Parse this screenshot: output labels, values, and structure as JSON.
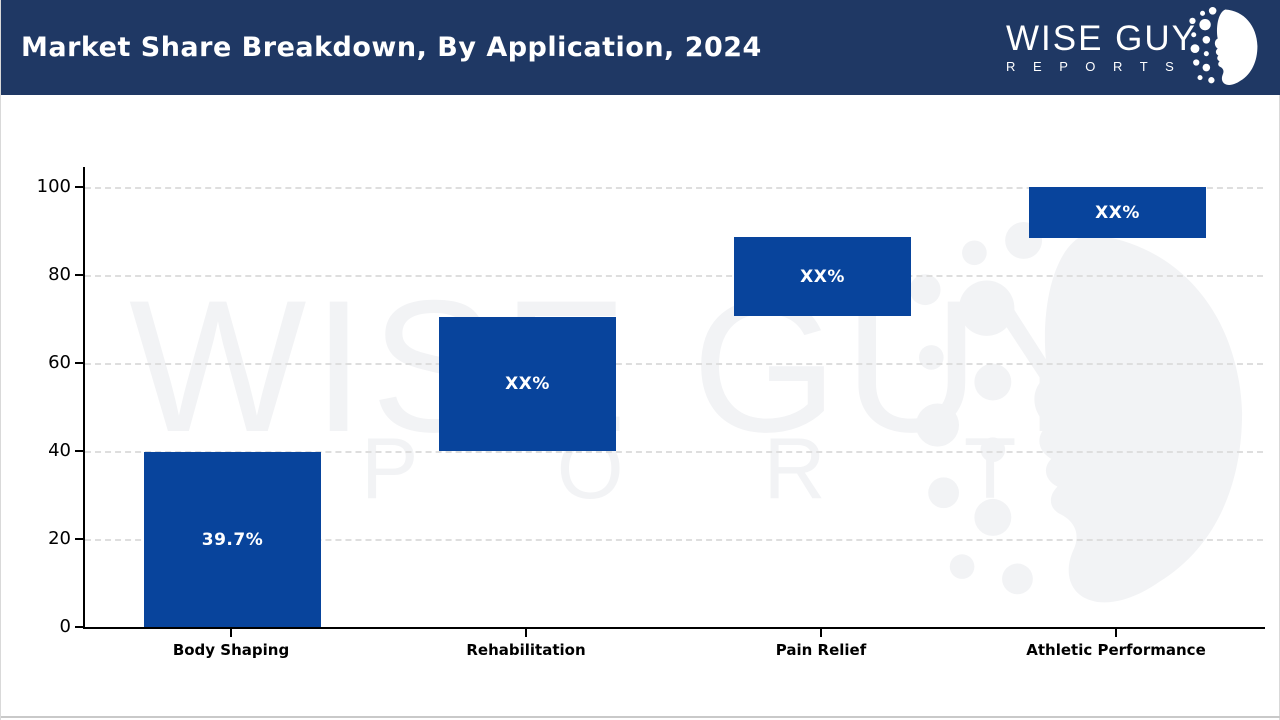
{
  "header": {
    "title": "Market Share Breakdown, By Application, 2024",
    "logo": {
      "line1": "WISE GUY",
      "line2": "R E P O R T S"
    },
    "bg_color": "#1f3864"
  },
  "watermark": {
    "line1": "WISE GUY",
    "line2": "P O R T S"
  },
  "chart_data": {
    "type": "bar",
    "subtype": "waterfall",
    "title": "Market Share Breakdown, By Application, 2024",
    "categories": [
      "Body Shaping",
      "Rehabilitation",
      "Pain Relief",
      "Athletic Performance"
    ],
    "segments": [
      {
        "category": "Body Shaping",
        "start": 0,
        "end": 39.7,
        "value_label": "39.7%"
      },
      {
        "category": "Rehabilitation",
        "start": 40,
        "end": 70.5,
        "value_label": "XX%"
      },
      {
        "category": "Pain Relief",
        "start": 70.5,
        "end": 88.5,
        "value_label": "XX%"
      },
      {
        "category": "Athletic Performance",
        "start": 88.5,
        "end": 100,
        "value_label": "XX%"
      }
    ],
    "yticks": [
      0,
      20,
      40,
      60,
      80,
      100
    ],
    "ylim": [
      0,
      104.5
    ],
    "xlabel": "",
    "ylabel": "",
    "grid": "horizontal-dashed",
    "legend": "none",
    "bar_color": "#08449c",
    "grid_color": "#dedede"
  }
}
